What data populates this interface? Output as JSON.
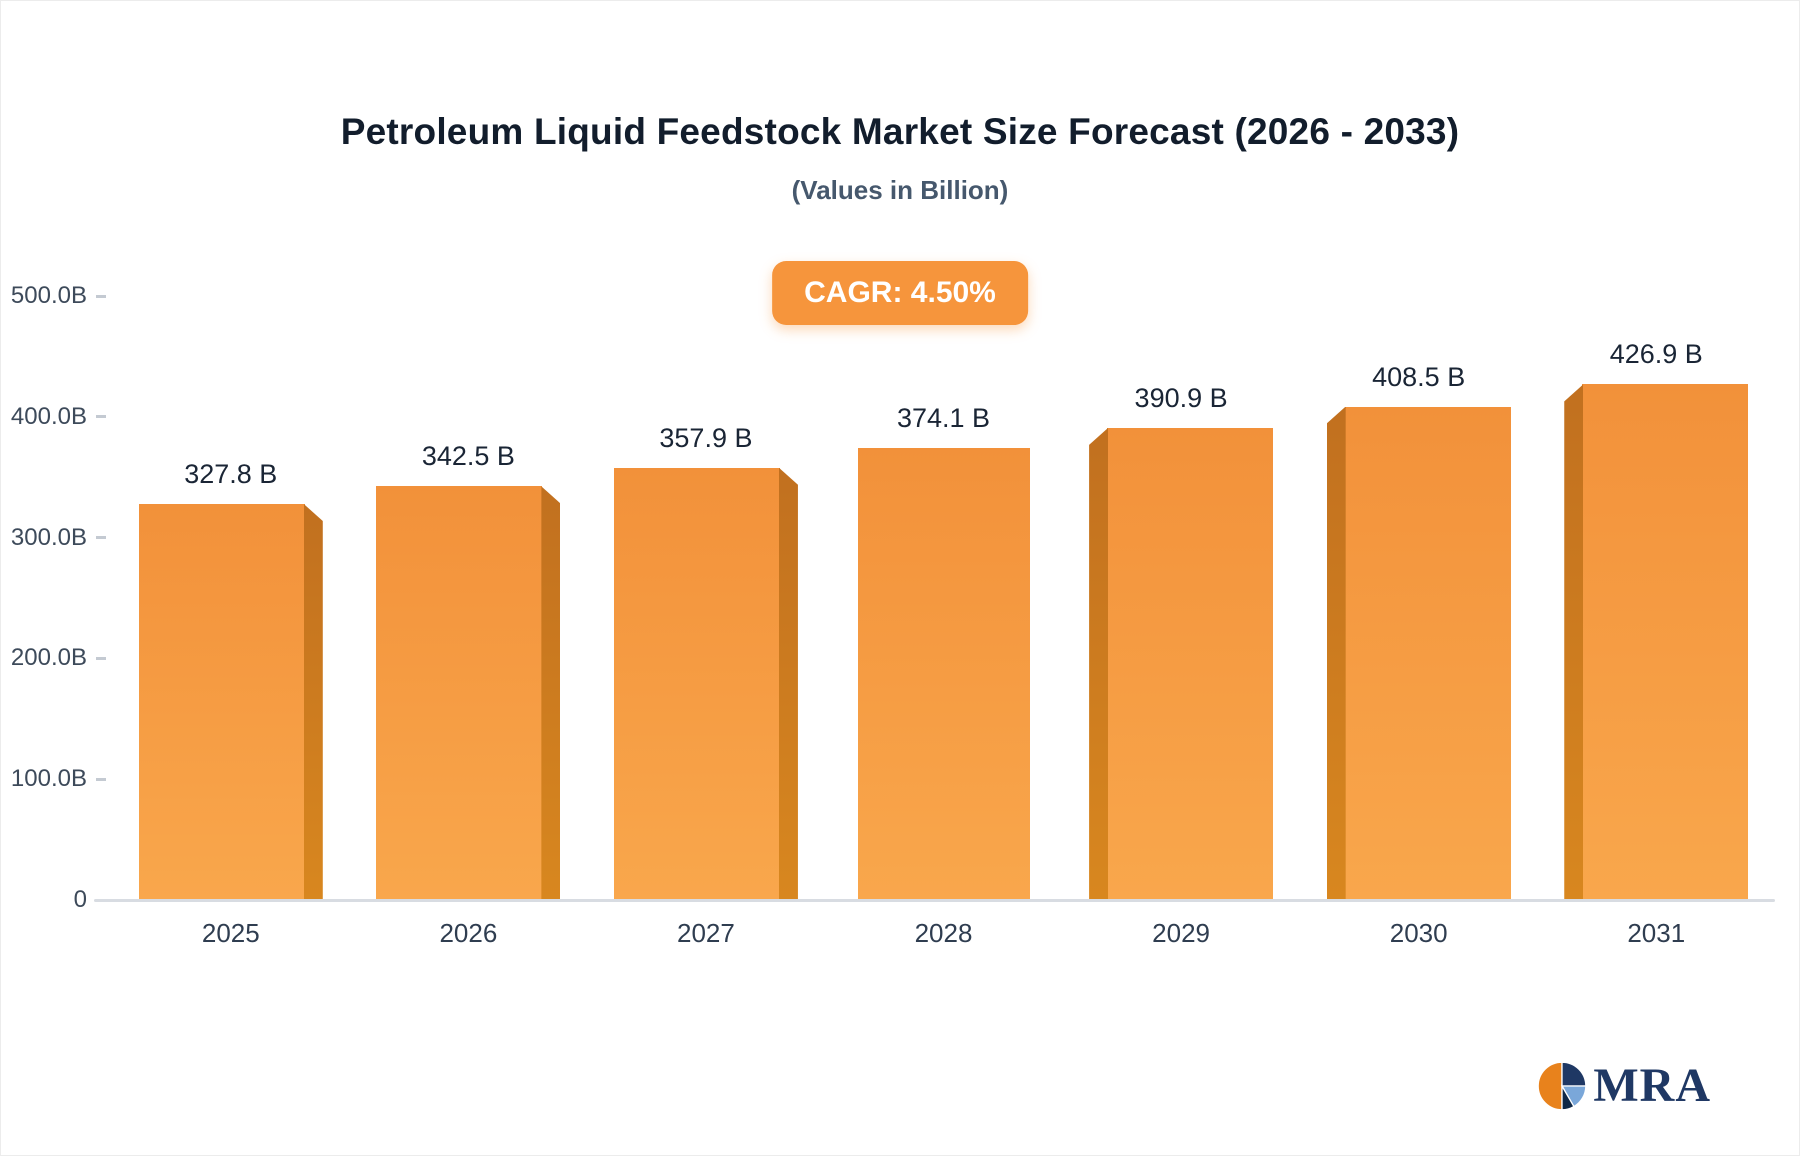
{
  "chart_data": {
    "type": "bar",
    "title": "Petroleum Liquid Feedstock Market Size Forecast (2026 - 2033)",
    "subtitle": "(Values in Billion)",
    "badge_label": "CAGR: 4.50%",
    "categories": [
      "2025",
      "2026",
      "2027",
      "2028",
      "2029",
      "2030",
      "2031"
    ],
    "values": [
      327.8,
      342.5,
      357.9,
      374.1,
      390.9,
      408.5,
      426.9
    ],
    "value_labels": [
      "327.8 B",
      "342.5 B",
      "357.9 B",
      "374.1 B",
      "390.9 B",
      "408.5 B",
      "426.9 B"
    ],
    "y_ticks": [
      {
        "label": "500.0B",
        "value": 500
      },
      {
        "label": "400.0B",
        "value": 400
      },
      {
        "label": "300.0B",
        "value": 300
      },
      {
        "label": "200.0B",
        "value": 200
      },
      {
        "label": "100.0B",
        "value": 100
      },
      {
        "label": "0",
        "value": 0
      }
    ],
    "ylim": [
      0,
      500
    ],
    "grid": false,
    "legend_position": "none",
    "colors": {
      "bar_face_top": "#f2913a",
      "bar_face_bottom": "#f9a74c",
      "bar_side": "#c1701f",
      "bar_side_light": "#d8871f",
      "badge_bg": "#f6953c",
      "badge_text": "#ffffff",
      "axis_line": "#d8dce2",
      "title_text": "#121d2c",
      "subtitle_text": "#46586d",
      "tick_text": "#3d4a5a"
    }
  },
  "logo": {
    "text": "MRA",
    "color": "#1f3864",
    "pie_colors": [
      "#e8821c",
      "#1f3864",
      "#7aa7d9",
      "#0f2746"
    ]
  }
}
